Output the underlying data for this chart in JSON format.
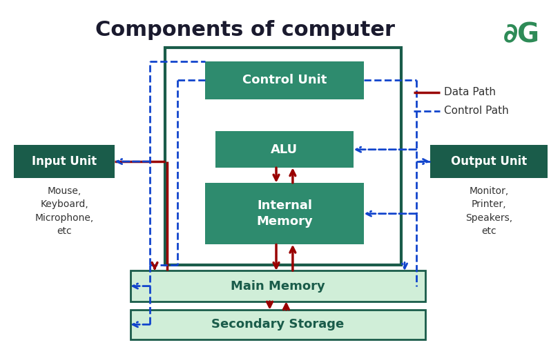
{
  "title": "Components of computer",
  "title_fontsize": 22,
  "title_color": "#1a1a2e",
  "bg_color": "#ffffff",
  "dark_green": "#1a5c4a",
  "mid_green": "#2e8b6e",
  "light_green": "#b8e0cc",
  "very_light_green": "#d0eed8",
  "red_arrow": "#990000",
  "blue_dashed": "#1144cc",
  "legend_data_path": "Data Path",
  "legend_control_path": "Control Path",
  "input_label": "Input Unit",
  "output_label": "Output Unit",
  "cu_label": "Control Unit",
  "alu_label": "ALU",
  "im_label": "Internal\nMemory",
  "mm_label": "Main Memory",
  "ss_label": "Secondary Storage",
  "input_sub": "Mouse,\nKeyboard,\nMicrophone,\netc",
  "output_sub": "Monitor,\nPrinter,\nSpeakers,\netc",
  "gfg_color": "#2e8b57"
}
